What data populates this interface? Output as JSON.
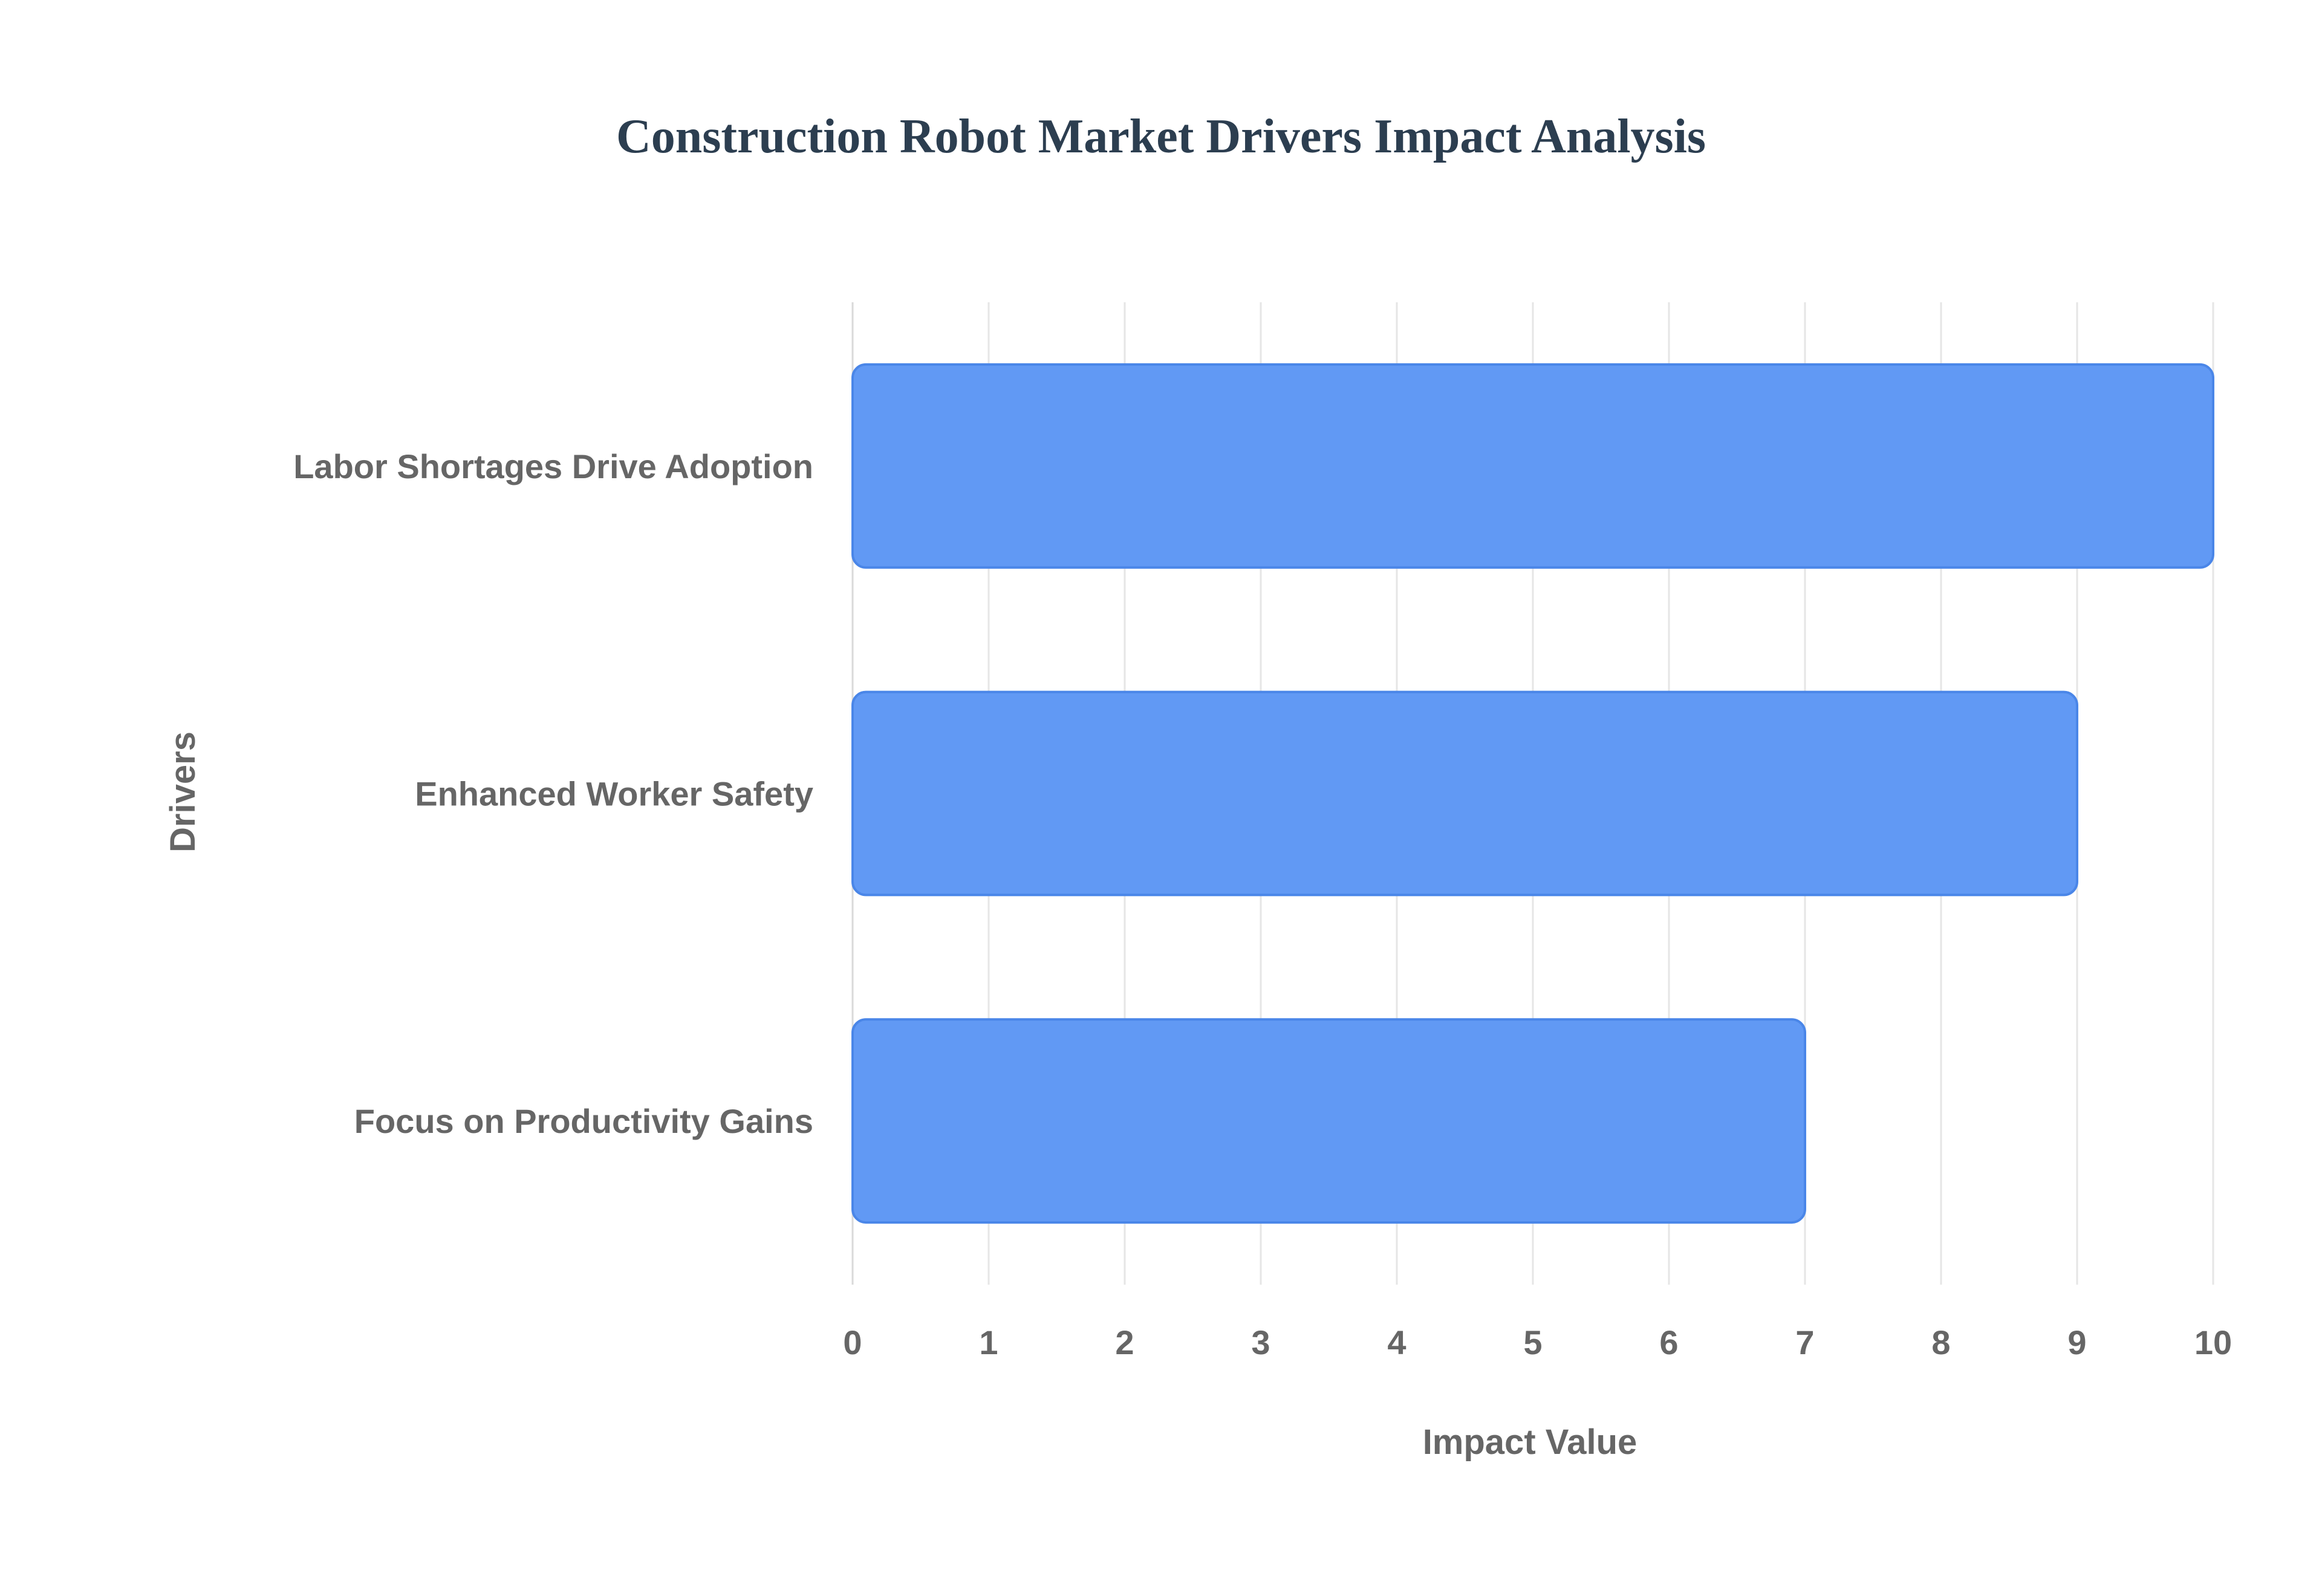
{
  "chart_data": {
    "type": "bar",
    "orientation": "horizontal",
    "title": "Construction Robot Market Drivers Impact Analysis",
    "xlabel": "Impact Value",
    "ylabel": "Drivers",
    "categories": [
      "Labor Shortages Drive Adoption",
      "Enhanced Worker Safety",
      "Focus on Productivity Gains"
    ],
    "values": [
      10,
      9,
      7
    ],
    "xlim": [
      0,
      10
    ],
    "xticks": [
      "0",
      "1",
      "2",
      "3",
      "4",
      "5",
      "6",
      "7",
      "8",
      "9",
      "10"
    ],
    "grid": true,
    "bar_color": "#6199f4",
    "bar_border_color": "#4a86e8"
  }
}
